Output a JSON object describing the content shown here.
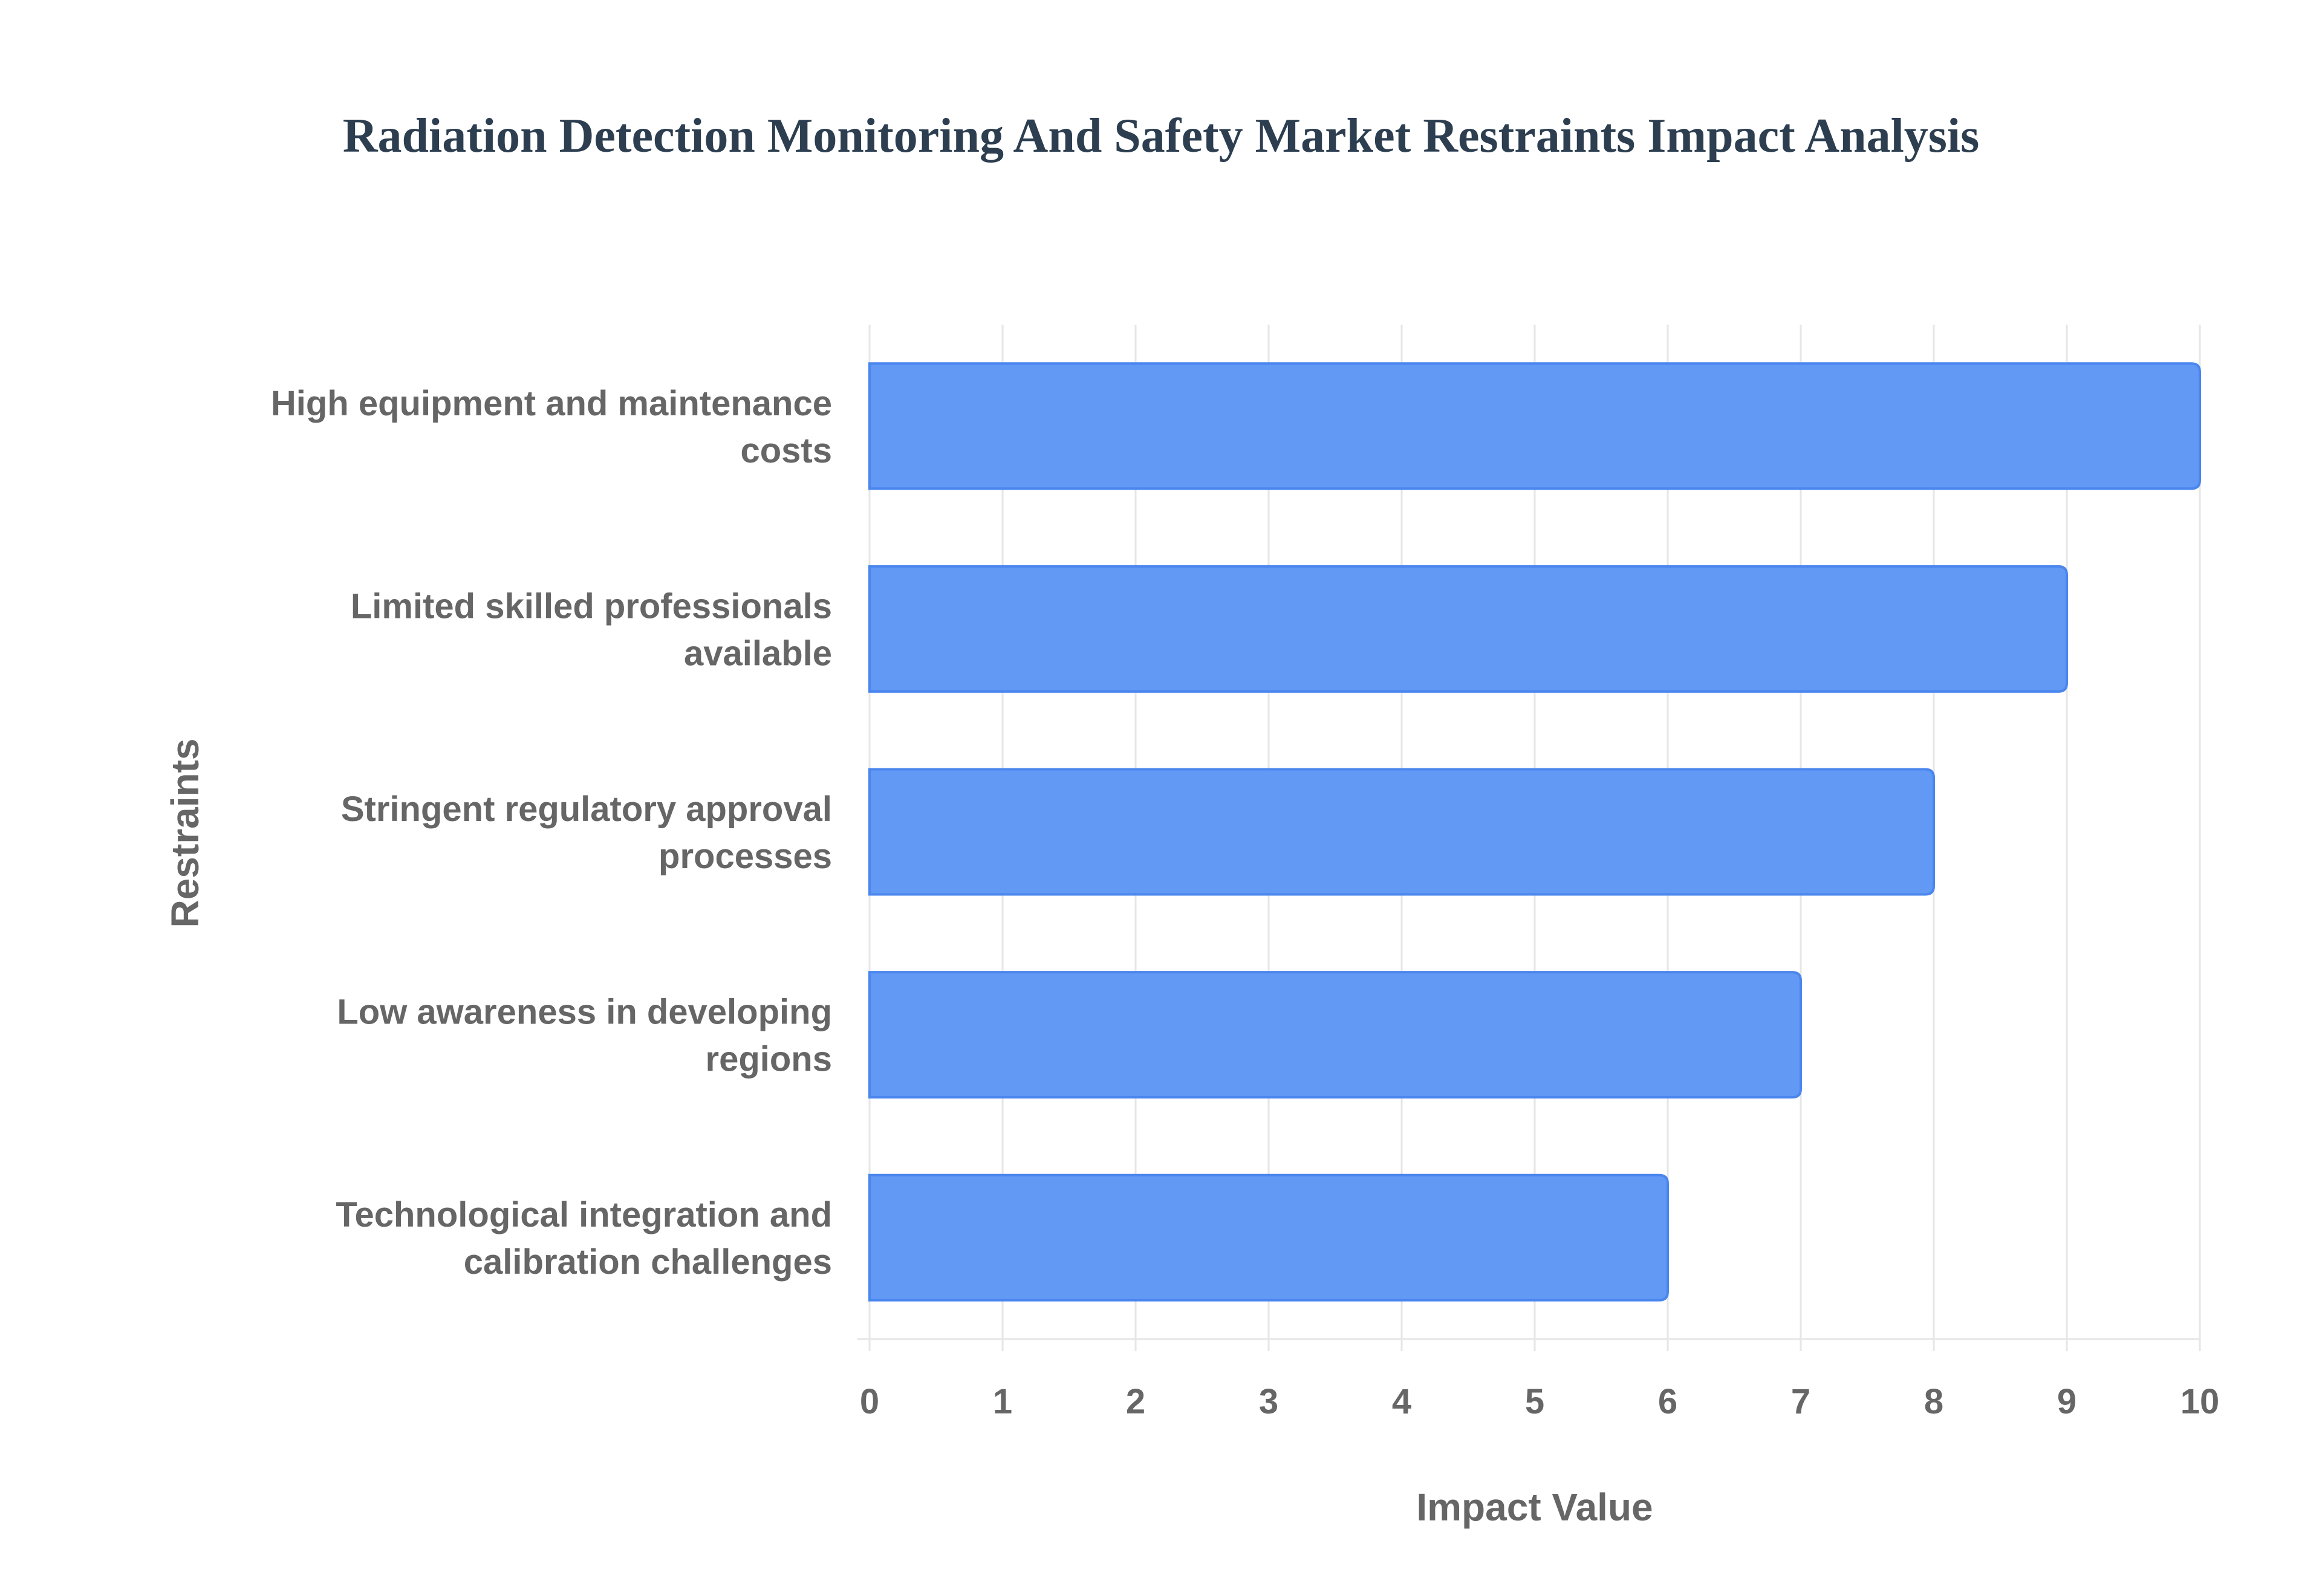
{
  "chart_data": {
    "type": "bar",
    "orientation": "horizontal",
    "title": "Radiation Detection Monitoring And Safety Market Restraints Impact Analysis",
    "xlabel": "Impact Value",
    "ylabel": "Restraints",
    "categories": [
      [
        "High equipment and maintenance",
        "costs"
      ],
      [
        "Limited skilled professionals",
        "available"
      ],
      [
        "Stringent regulatory approval",
        "processes"
      ],
      [
        "Low awareness in developing",
        "regions"
      ],
      [
        "Technological integration and",
        "calibration challenges"
      ]
    ],
    "values": [
      10,
      9,
      8,
      7,
      6
    ],
    "xlim": [
      0,
      10
    ],
    "xticks": [
      "0",
      "1",
      "2",
      "3",
      "4",
      "5",
      "6",
      "7",
      "8",
      "9",
      "10"
    ],
    "grid": true,
    "bar_color": "#6199f5",
    "bar_border": "#4a86ee"
  }
}
